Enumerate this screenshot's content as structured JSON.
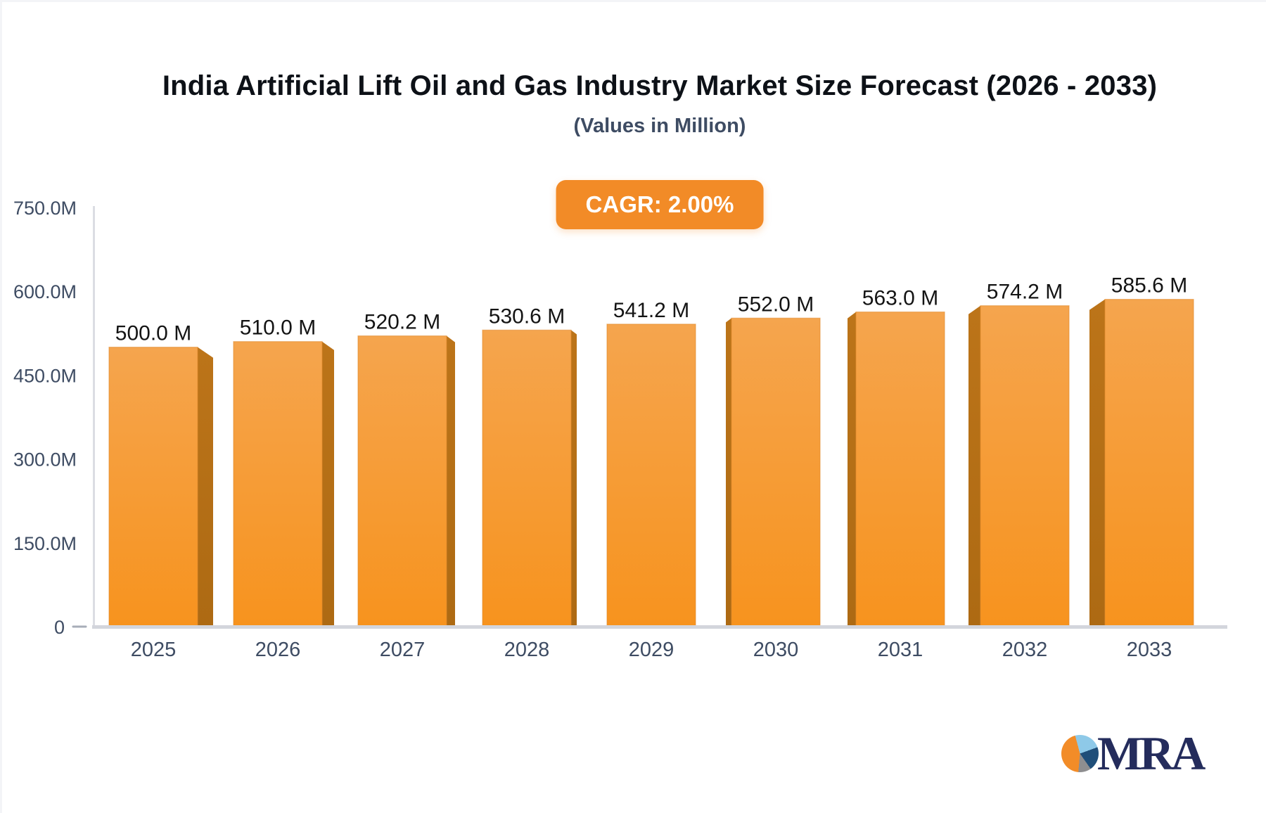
{
  "header": {
    "title": "India Artificial Lift Oil and Gas Industry Market Size Forecast (2026 - 2033)",
    "subtitle": "(Values in Million)",
    "cagr_label": "CAGR: 2.00%"
  },
  "chart_data": {
    "type": "bar",
    "title": "India Artificial Lift Oil and Gas Industry Market Size Forecast (2026 - 2033)",
    "subtitle": "(Values in Million)",
    "unit": "Million",
    "cagr": "2.00%",
    "categories": [
      "2025",
      "2026",
      "2027",
      "2028",
      "2029",
      "2030",
      "2031",
      "2032",
      "2033"
    ],
    "values": [
      500.0,
      510.0,
      520.2,
      530.6,
      541.2,
      552.0,
      563.0,
      574.2,
      585.6
    ],
    "value_labels": [
      "500.0 M",
      "510.0 M",
      "520.2 M",
      "530.6 M",
      "541.2 M",
      "552.0 M",
      "563.0 M",
      "574.2 M",
      "585.6 M"
    ],
    "xlabel": "",
    "ylabel": "",
    "ylim": [
      0,
      750
    ],
    "yticks": [
      {
        "value": 750,
        "label": "750.0M"
      },
      {
        "value": 600,
        "label": "600.0M"
      },
      {
        "value": 450,
        "label": "450.0M"
      },
      {
        "value": 300,
        "label": "300.0M"
      },
      {
        "value": 150,
        "label": "150.0M"
      },
      {
        "value": 0,
        "label": "0"
      }
    ],
    "grid": false,
    "legend_position": "none",
    "style": "3d-bars, perspective vanishing toward center bar"
  },
  "colors": {
    "bar_gradient_top": "#f5a54e",
    "bar_gradient_bottom": "#f7931e",
    "bar_side": "#b56f17",
    "bar_edge": "#e08a2e",
    "badge_bg": "#f28b27",
    "badge_text": "#ffffff",
    "axis_line": "#dbdde3",
    "baseline": "#d3d5dc",
    "tick_dash": "#a7adb8",
    "tick_text": "#3e4c63",
    "value_text": "#141414",
    "title_text": "#0d1117",
    "subtitle_text": "#3e4c63",
    "logo_navy": "#242c5c",
    "logo_orange": "#f28c28",
    "logo_light_blue": "#8ec9e8",
    "logo_dark_blue": "#1f4e79",
    "logo_gray": "#8e8e90"
  },
  "logo": {
    "text": "MRA",
    "icon": "pie-chart-icon"
  }
}
